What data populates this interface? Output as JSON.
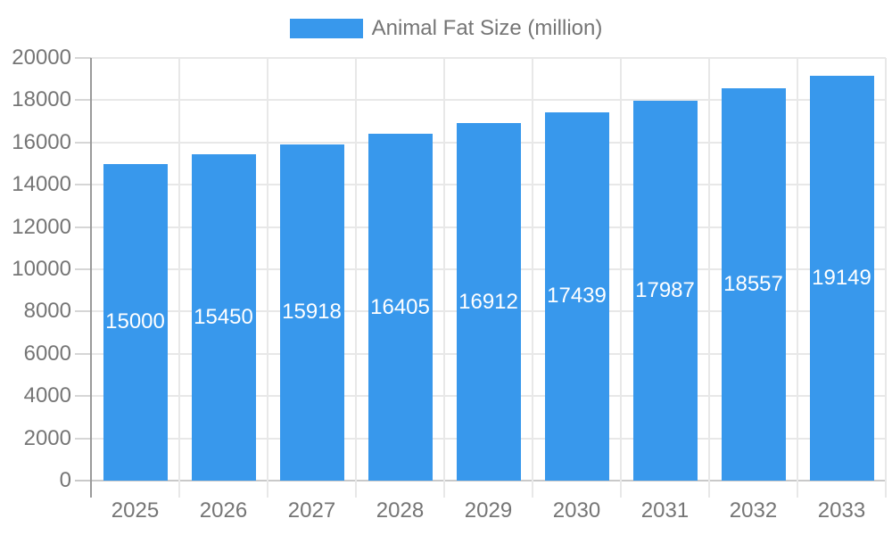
{
  "chart_data": {
    "type": "bar",
    "title": "",
    "categories": [
      "2025",
      "2026",
      "2027",
      "2028",
      "2029",
      "2030",
      "2031",
      "2032",
      "2033"
    ],
    "series": [
      {
        "name": "Animal Fat Size (million)",
        "values": [
          15000,
          15450,
          15918,
          16405,
          16912,
          17439,
          17987,
          18557,
          19149
        ]
      }
    ],
    "xlabel": "",
    "ylabel": "",
    "ylim": [
      0,
      20000
    ],
    "ytick_step": 2000,
    "ytick_labels": [
      "0",
      "2000",
      "4000",
      "6000",
      "8000",
      "10000",
      "12000",
      "14000",
      "16000",
      "18000",
      "20000"
    ],
    "legend_position": "top-center",
    "grid": {
      "horizontal": true,
      "vertical": true
    },
    "value_label_position": "inside-center",
    "colors": {
      "bar": "#3898EC",
      "axis_text": "#757575",
      "value_text": "#FFFFFF",
      "gridline": "#E8E8E8",
      "axis_line": "#9A9A9A",
      "tick": "#D6D6D6",
      "baseline": "#C9C9C9",
      "background": "#FFFFFF"
    }
  }
}
